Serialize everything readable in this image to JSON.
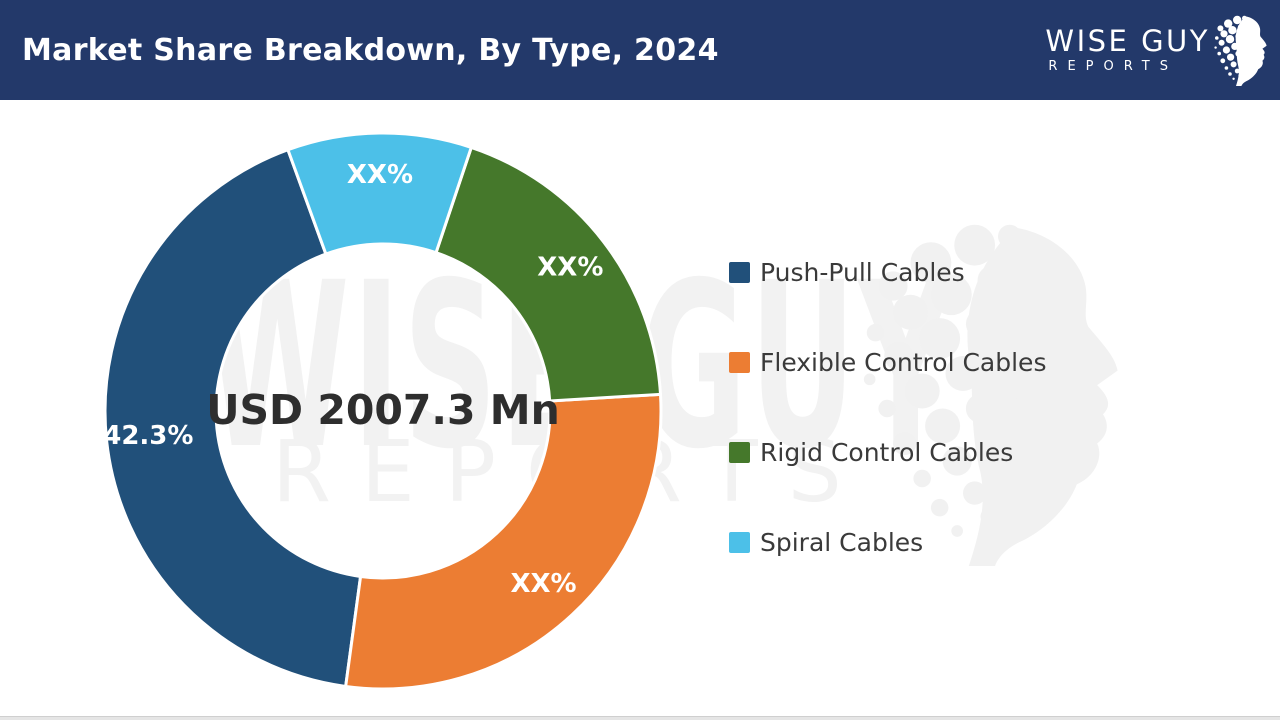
{
  "header": {
    "title": "Market Share Breakdown, By Type, 2024",
    "bg_color": "#23396a",
    "brand": {
      "name": "WISE GUY",
      "subtitle": "REPORTS"
    }
  },
  "watermark": {
    "line1": "WISE GUY",
    "line2": "REPORTS"
  },
  "chart_data": {
    "type": "pie",
    "subtype": "donut",
    "title": "Market Share Breakdown, By Type, 2024",
    "center_label": "USD 2007.3 Mn",
    "legend_position": "right",
    "start_angle_deg_clockwise_from_top": -20,
    "direction": "counterclockwise",
    "categories": [
      "Push-Pull Cables",
      "Flexible Control Cables",
      "Rigid Control Cables",
      "Spiral Cables"
    ],
    "slices": [
      {
        "name": "Push-Pull Cables",
        "display_label": "42.3%",
        "value_pct": 42.3,
        "value_is_estimated": false,
        "color": "#21507a"
      },
      {
        "name": "Flexible Control Cables",
        "display_label": "XX%",
        "value_pct": 28.1,
        "value_is_estimated": true,
        "color": "#ec7d33"
      },
      {
        "name": "Rigid Control Cables",
        "display_label": "XX%",
        "value_pct": 18.9,
        "value_is_estimated": true,
        "color": "#45782b"
      },
      {
        "name": "Spiral Cables",
        "display_label": "XX%",
        "value_pct": 10.7,
        "value_is_estimated": true,
        "color": "#4cc0e8"
      }
    ]
  }
}
